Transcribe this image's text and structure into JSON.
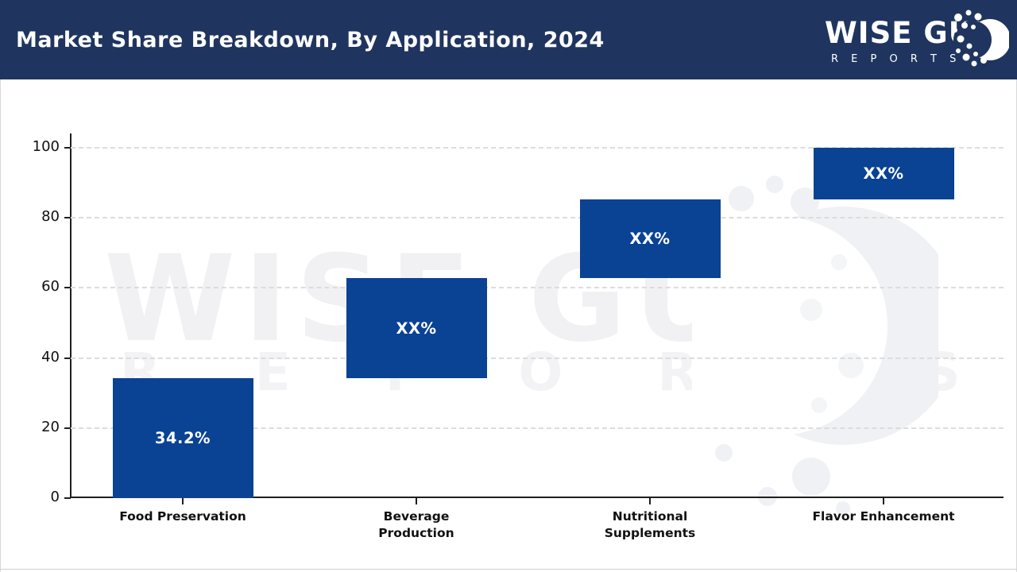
{
  "header": {
    "title": "Market Share Breakdown, By Application, 2024",
    "logo": {
      "line1": "WISE GUY",
      "line2": "R E P O R T S"
    }
  },
  "watermark": {
    "line1": "WISE GUY",
    "line2": "R E P O R T S"
  },
  "colors": {
    "header_navy": "#1f355f",
    "bar_blue": "#0a4294",
    "grid_gray": "#dcdcdc",
    "axis_black": "#1f1f1f",
    "watermark_gray": "#f1f1f4",
    "bar_label_white": "#ffffff"
  },
  "chart_data": {
    "type": "bar",
    "subtype": "floating-stacked-segments",
    "title": "Market Share Breakdown, By Application, 2024",
    "categories": [
      "Food Preservation",
      "Beverage Production",
      "Nutritional Supplements",
      "Flavor Enhancement"
    ],
    "segments": [
      {
        "category": "Food Preservation",
        "start": 0,
        "end": 34.2,
        "label": "34.2%"
      },
      {
        "category": "Beverage Production",
        "start": 34.2,
        "end": 62.8,
        "label": "XX%"
      },
      {
        "category": "Nutritional Supplements",
        "start": 62.8,
        "end": 85.3,
        "label": "XX%"
      },
      {
        "category": "Flavor Enhancement",
        "start": 85.3,
        "end": 100,
        "label": "XX%"
      }
    ],
    "xlabel": "",
    "ylabel": "",
    "ylim": [
      0,
      100
    ],
    "yticks": [
      0,
      20,
      40,
      60,
      80,
      100
    ],
    "grid": "horizontal-dashed",
    "legend_position": "none",
    "bar_color": "#0a4294",
    "value_label_color": "#ffffff"
  }
}
